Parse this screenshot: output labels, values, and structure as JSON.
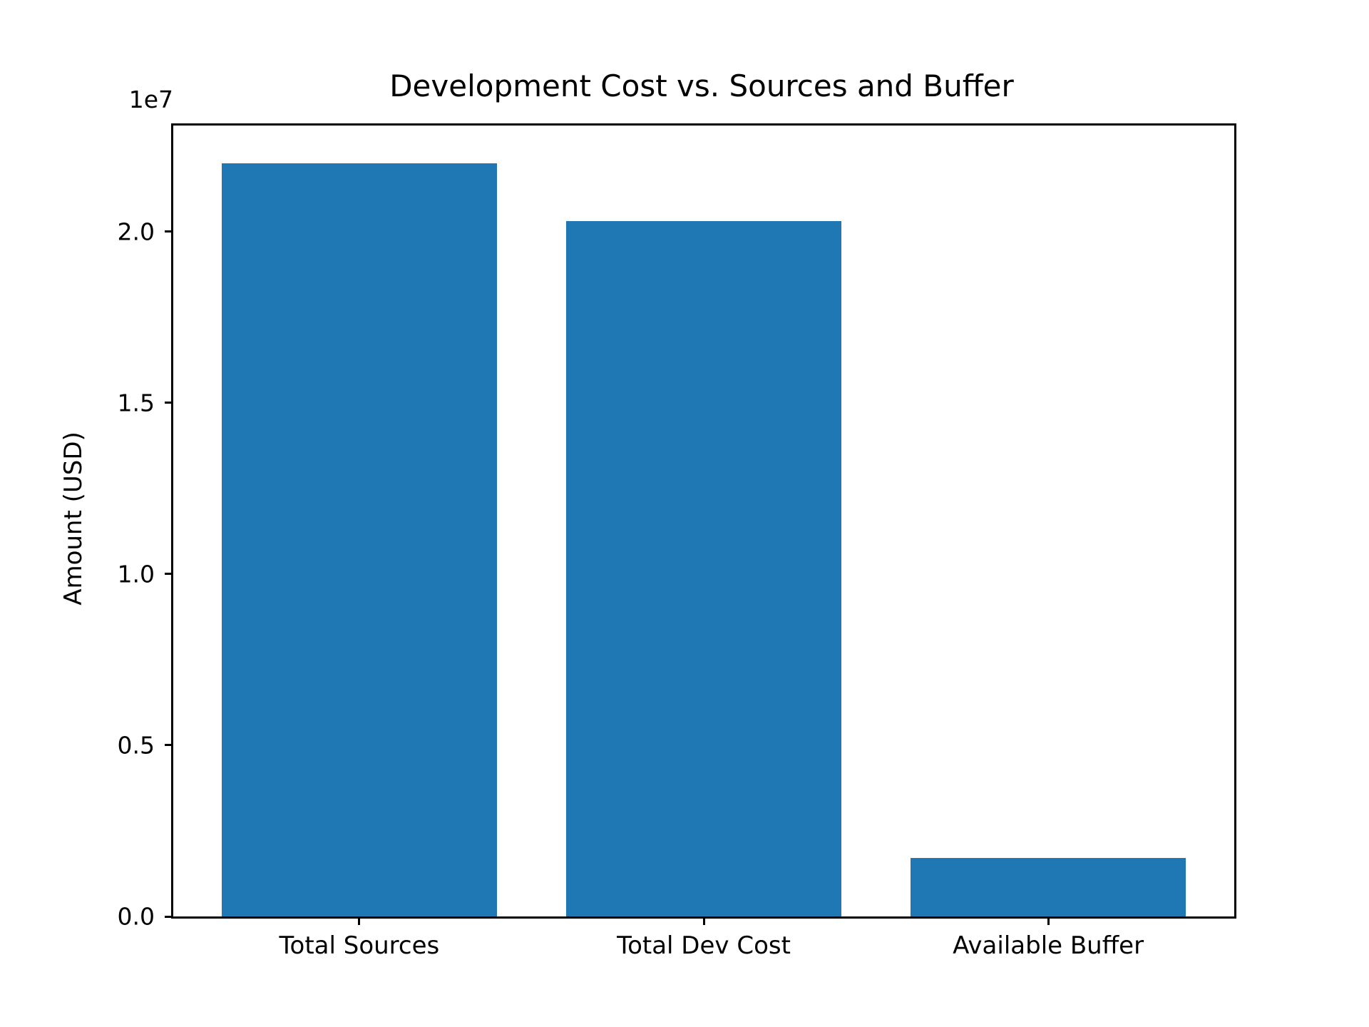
{
  "chart_data": {
    "type": "bar",
    "title": "Development Cost vs. Sources and Buffer",
    "categories": [
      "Total Sources",
      "Total Dev Cost",
      "Available Buffer"
    ],
    "values": [
      22000000,
      20300000,
      1700000
    ],
    "xlabel": "",
    "ylabel": "Amount (USD)",
    "ylim": [
      0,
      23100000
    ],
    "xlim": [
      -0.54,
      2.54
    ],
    "bar_width": 0.8,
    "yticks": [
      {
        "value": 0,
        "label": "0.0"
      },
      {
        "value": 5000000,
        "label": "0.5"
      },
      {
        "value": 10000000,
        "label": "1.0"
      },
      {
        "value": 15000000,
        "label": "1.5"
      },
      {
        "value": 20000000,
        "label": "2.0"
      }
    ],
    "y_offset_label": "1e7",
    "bar_color": "#1f77b4",
    "grid": false,
    "legend": false
  }
}
